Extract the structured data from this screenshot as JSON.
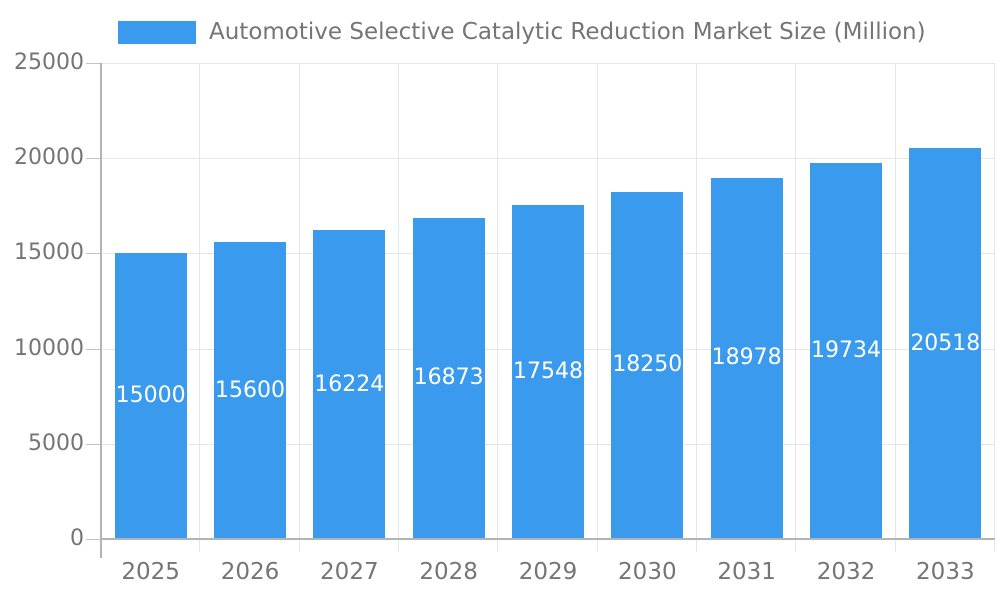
{
  "chart_data": {
    "type": "bar",
    "title": "Automotive Selective Catalytic Reduction Market Size (Million)",
    "categories": [
      "2025",
      "2026",
      "2027",
      "2028",
      "2029",
      "2030",
      "2031",
      "2032",
      "2033"
    ],
    "values": [
      15000,
      15600,
      16224,
      16873,
      17548,
      18250,
      18978,
      19734,
      20518
    ],
    "xlabel": "",
    "ylabel": "",
    "ylim": [
      0,
      25000
    ],
    "ytick_interval": 5000,
    "yticks": [
      0,
      5000,
      10000,
      15000,
      20000,
      25000
    ],
    "grid": true,
    "legend_position": "top",
    "colors": {
      "bar": "#3a9bee",
      "bar_label": "#ffffff",
      "axis_text": "#757575",
      "grid_line": "#e6e6e6",
      "axis_line": "#b4b4b4",
      "tick": "#c4c4c4",
      "background": "#ffffff"
    }
  }
}
